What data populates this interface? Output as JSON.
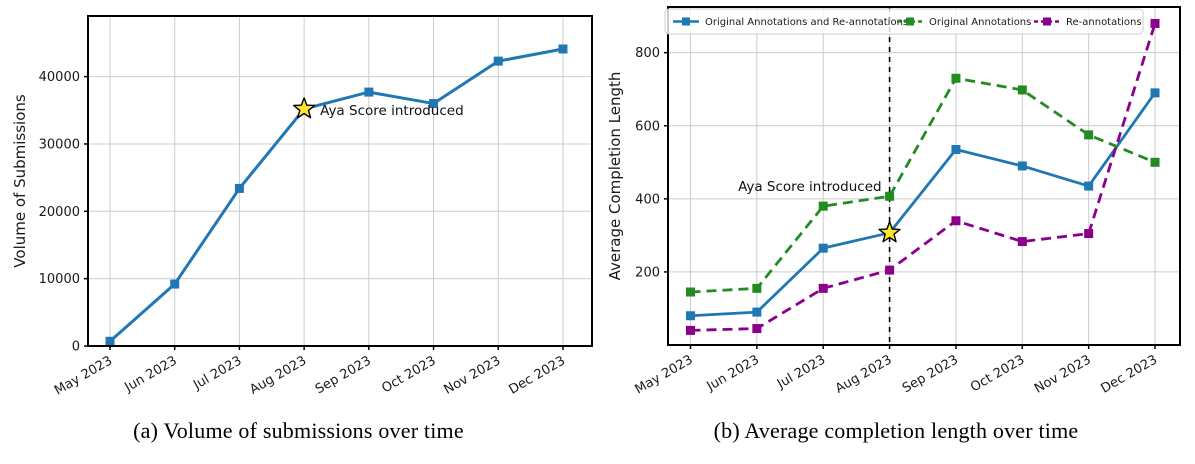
{
  "page": {
    "background": "#ffffff"
  },
  "chart_data": [
    {
      "type": "line",
      "caption": "(a) Volume of submissions over time",
      "title": "",
      "xlabel": "",
      "ylabel": "Volume of Submissions",
      "categories": [
        "May 2023",
        "Jun 2023",
        "Jul 2023",
        "Aug 2023",
        "Sep 2023",
        "Oct 2023",
        "Nov 2023",
        "Dec 2023"
      ],
      "series": [
        {
          "name": "Volume of Submissions",
          "style": "solid",
          "marker": "square",
          "color": "#1f77b4",
          "values": [
            700,
            9200,
            23400,
            35200,
            37700,
            36000,
            42300,
            44100
          ]
        }
      ],
      "yticks": [
        0,
        10000,
        20000,
        30000,
        40000
      ],
      "ylim": [
        0,
        49000
      ],
      "grid": true,
      "legend": null,
      "annotation": {
        "text": "Aya Score introduced",
        "category": "Aug 2023",
        "value": 35200,
        "marker": "star",
        "marker_color": "#ffe52c"
      }
    },
    {
      "type": "line",
      "caption": "(b) Average completion length over time",
      "title": "",
      "xlabel": "",
      "ylabel": "Average Completion Length",
      "categories": [
        "May 2023",
        "Jun 2023",
        "Jul 2023",
        "Aug 2023",
        "Sep 2023",
        "Oct 2023",
        "Nov 2023",
        "Dec 2023"
      ],
      "series": [
        {
          "name": "Original Annotations and Re-annotations",
          "style": "solid",
          "marker": "square",
          "color": "#1f77b4",
          "values": [
            80,
            90,
            265,
            307,
            535,
            490,
            435,
            690
          ]
        },
        {
          "name": "Original Annotations",
          "style": "dashed",
          "marker": "square",
          "color": "#228b22",
          "values": [
            145,
            155,
            380,
            407,
            730,
            698,
            575,
            500
          ]
        },
        {
          "name": "Re-annotations",
          "style": "dashed",
          "marker": "square",
          "color": "#8b008b",
          "values": [
            40,
            45,
            155,
            205,
            340,
            283,
            305,
            880
          ]
        }
      ],
      "yticks": [
        200,
        400,
        600,
        800
      ],
      "ylim": [
        0,
        925
      ],
      "grid": true,
      "legend": {
        "position": "top",
        "entries": [
          "Original Annotations and Re-annotations",
          "Original Annotations",
          "Re-annotations"
        ]
      },
      "vline": {
        "category": "Aug 2023",
        "style": "dashed",
        "color": "#000000"
      },
      "annotation": {
        "text": "Aya Score introduced",
        "category": "Aug 2023",
        "value": 307,
        "marker": "star",
        "marker_color": "#ffe52c"
      }
    }
  ]
}
